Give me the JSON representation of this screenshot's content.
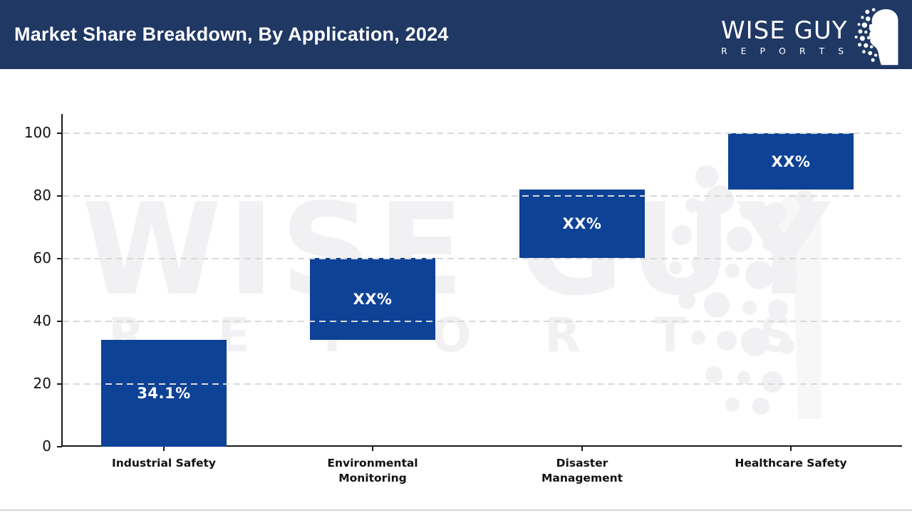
{
  "header": {
    "title": "Market Share Breakdown, By Application, 2024",
    "brand": {
      "name": "WISE GUY",
      "tagline": "R E P O R T S",
      "face_icon": "dotted-head-profile-icon"
    }
  },
  "watermark": {
    "line1": "WISE GUY",
    "line2": "R E P O R T S",
    "dots_icon": "dotted-head-profile-watermark"
  },
  "chart_data": {
    "type": "bar",
    "subtype": "waterfall",
    "title": "Market Share Breakdown, By Application, 2024",
    "xlabel": "",
    "ylabel": "",
    "categories": [
      "Industrial Safety",
      "Environmental\nMonitoring",
      "Disaster\nManagement",
      "Healthcare Safety"
    ],
    "segments": [
      {
        "label": "34.1%",
        "start": 0,
        "end": 34.1
      },
      {
        "label": "XX%",
        "start": 34.1,
        "end": 60.2
      },
      {
        "label": "XX%",
        "start": 60.2,
        "end": 82.0
      },
      {
        "label": "XX%",
        "start": 82.0,
        "end": 100.0
      }
    ],
    "yticks": [
      0,
      20,
      40,
      60,
      80,
      100
    ],
    "ylim": [
      0,
      105
    ],
    "grid": "horizontal-dashed",
    "legend": "none"
  },
  "colors": {
    "header_bg": "#1f3864",
    "bar": "#0d4296",
    "bar_label": "#ffffff",
    "grid": "#d9d9d9",
    "watermark": "#f1f1f3",
    "footer_line": "#d4d4d4"
  }
}
